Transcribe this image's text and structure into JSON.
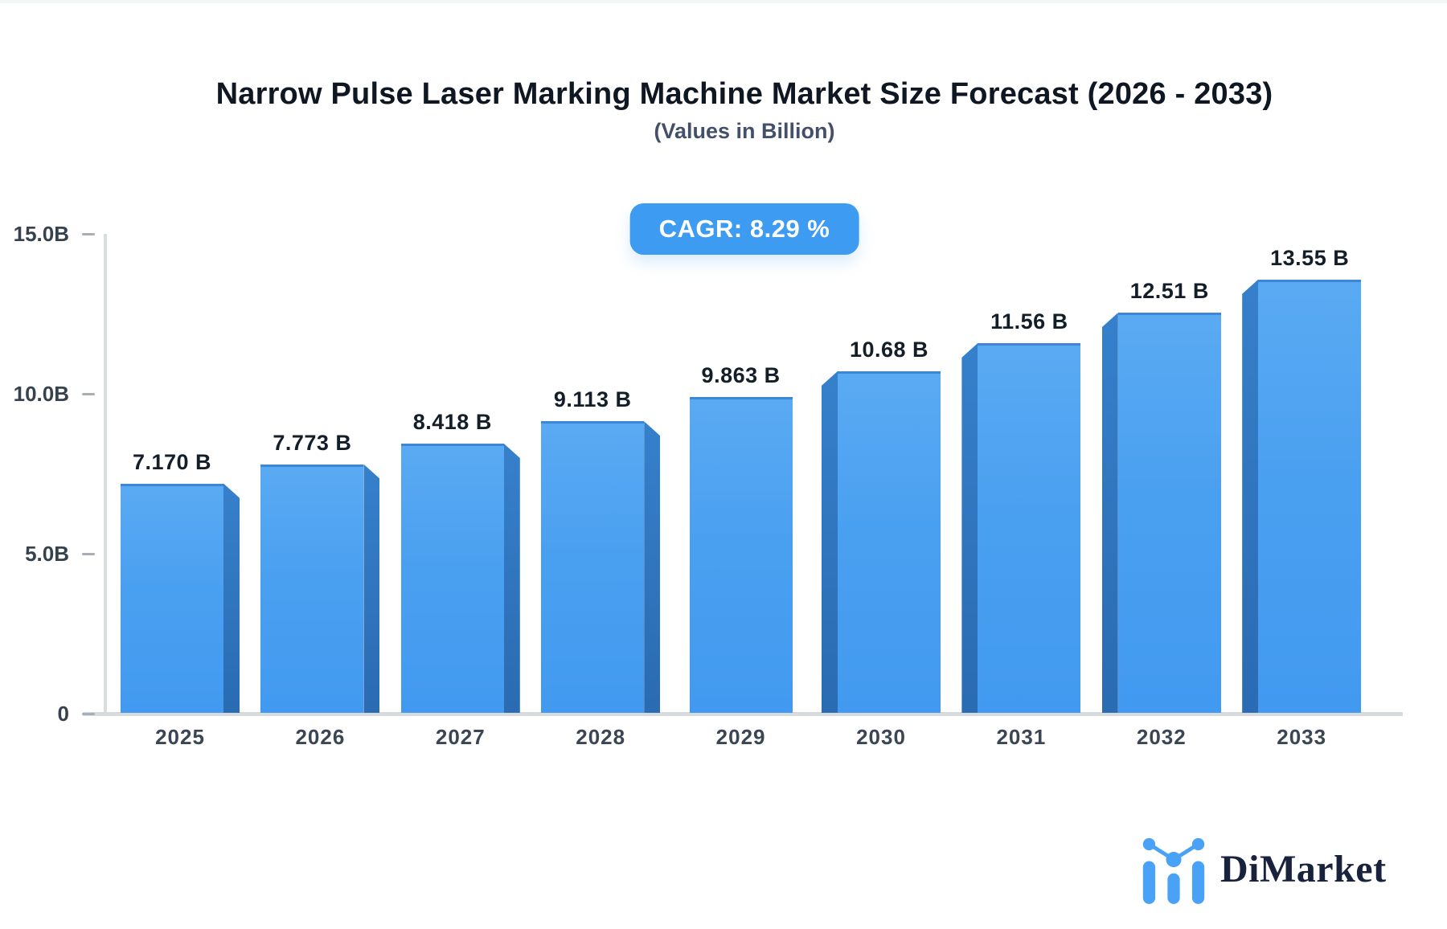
{
  "chart_data": {
    "type": "bar",
    "title": "Narrow Pulse Laser Marking Machine Market Size Forecast (2026 - 2033)",
    "subtitle": "(Values in Billion)",
    "badge": "CAGR: 8.29 %",
    "categories": [
      "2025",
      "2026",
      "2027",
      "2028",
      "2029",
      "2030",
      "2031",
      "2032",
      "2033"
    ],
    "values": [
      7.17,
      7.773,
      8.418,
      9.113,
      9.863,
      10.68,
      11.56,
      12.51,
      13.55
    ],
    "value_labels": [
      "7.170 B",
      "7.773 B",
      "8.418 B",
      "9.113 B",
      "9.863 B",
      "10.68 B",
      "11.56 B",
      "12.51 B",
      "13.55 B"
    ],
    "xlabel": "",
    "ylabel": "",
    "ylim": [
      0,
      15
    ],
    "yticks": [
      {
        "label": "15.0B",
        "value": 15
      },
      {
        "label": "10.0B",
        "value": 10
      },
      {
        "label": "5.0B",
        "value": 5
      },
      {
        "label": "0",
        "value": 0
      }
    ],
    "grid": false,
    "legend": false,
    "bar_face_color": "#4aa0f0",
    "bar_side_color": "#2e73bf",
    "badge_color": "#3d9bf1"
  },
  "logo": {
    "brand": "DiMarket",
    "icon": "bar-chart-trend-icon",
    "icon_color": "#4aa2f7",
    "text_color": "#18223d"
  }
}
